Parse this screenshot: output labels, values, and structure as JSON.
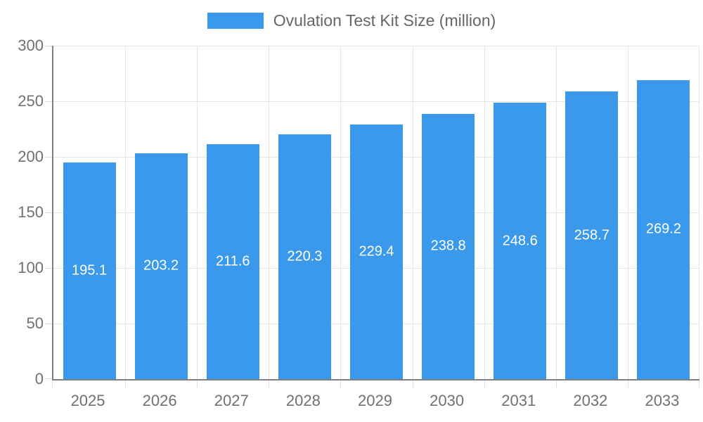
{
  "chart_data": {
    "type": "bar",
    "title": "Ovulation Test Kit Size (million)",
    "series_name": "Ovulation Test Kit Size (million)",
    "categories": [
      "2025",
      "2026",
      "2027",
      "2028",
      "2029",
      "2030",
      "2031",
      "2032",
      "2033"
    ],
    "values": [
      195.1,
      203.2,
      211.6,
      220.3,
      229.4,
      238.8,
      248.6,
      258.7,
      269.2
    ],
    "value_labels": [
      "195.1",
      "203.2",
      "211.6",
      "220.3",
      "229.4",
      "238.8",
      "248.6",
      "258.7",
      "269.2"
    ],
    "xlabel": "",
    "ylabel": "",
    "ylim": [
      0,
      300
    ],
    "yticks": [
      0,
      50,
      100,
      150,
      200,
      250,
      300
    ],
    "grid": true,
    "legend_position": "top",
    "bar_labels_visible": true
  },
  "colors": {
    "bar": "#3B99EC",
    "bar_label": "#FFFFFF",
    "axis_line": "#808080",
    "gridline": "#E6E6E6",
    "tick": "#DBDBDB",
    "axis_label": "#707070",
    "legend_text": "#666666",
    "background": "#FFFFFF"
  }
}
